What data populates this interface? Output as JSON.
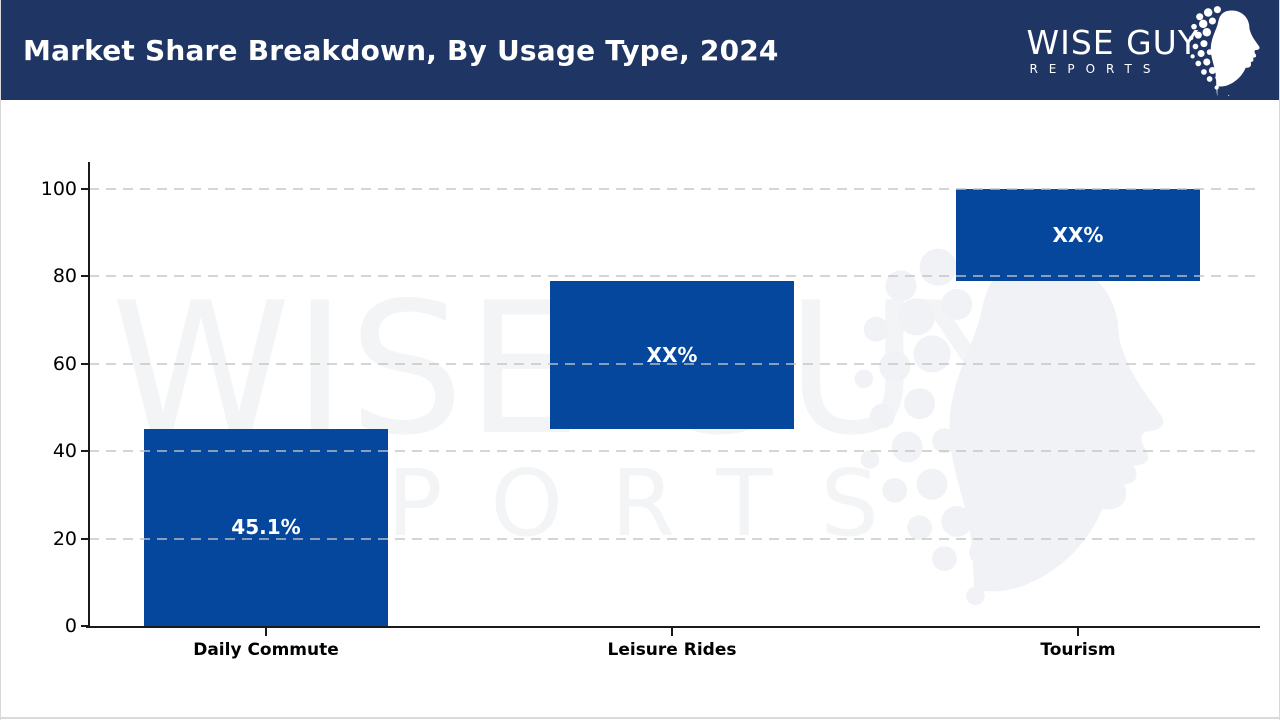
{
  "header": {
    "title": "Market Share Breakdown, By Usage Type, 2024",
    "logo": {
      "line1": "WISE GUY",
      "line2": "REPORTS"
    }
  },
  "watermark": {
    "line1": "WISE GUY",
    "line2": "REPORTS"
  },
  "theme": {
    "header_navy": "#1f3563",
    "bar_blue": "#04479c",
    "watermark_gray": "#f3f4f6",
    "grid_gray": "#d9d9d9"
  },
  "chart_data": {
    "type": "bar",
    "variant": "floating-waterfall",
    "title": "Market Share Breakdown, By Usage Type, 2024",
    "categories": [
      "Daily Commute",
      "Leisure Rides",
      "Tourism"
    ],
    "segments": [
      {
        "category": "Daily Commute",
        "from": 0,
        "to": 45.1,
        "label": "45.1%"
      },
      {
        "category": "Leisure Rides",
        "from": 45.1,
        "to": 78.8,
        "label": "XX%"
      },
      {
        "category": "Tourism",
        "from": 78.8,
        "to": 100,
        "label": "XX%"
      }
    ],
    "ylabel": "",
    "xlabel": "",
    "ylim": [
      0,
      105
    ],
    "yticks": [
      0,
      20,
      40,
      60,
      80,
      100
    ],
    "grid": "dashed-horizontal-over-bars",
    "legend": "none",
    "bar_color": "#04479c",
    "bar_label_color": "#ffffff"
  }
}
